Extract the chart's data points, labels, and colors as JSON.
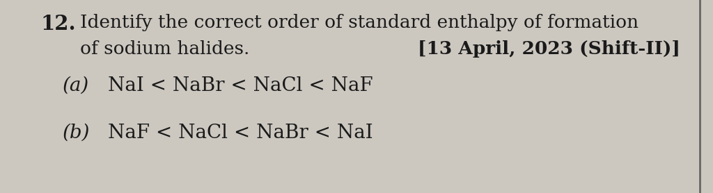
{
  "background_color": "#ccc8c0",
  "question_number": "12.",
  "question_line1": "Identify the correct order of standard enthalpy of formation",
  "question_line2": "of sodium halides.",
  "reference": "[13 April, 2023 (Shift-II)]",
  "option_a_label": "(a)",
  "option_a_text": "NaI < NaBr < NaCl < NaF",
  "option_b_label": "(b)",
  "option_b_text": "NaF < NaCl < NaBr < NaI",
  "text_color": "#1a1a1a",
  "font_size_question": 19,
  "font_size_options": 20,
  "font_size_number": 21,
  "border_color": "#666666",
  "border_linewidth": 2.0,
  "fig_width": 10.24,
  "fig_height": 2.78,
  "dpi": 100
}
